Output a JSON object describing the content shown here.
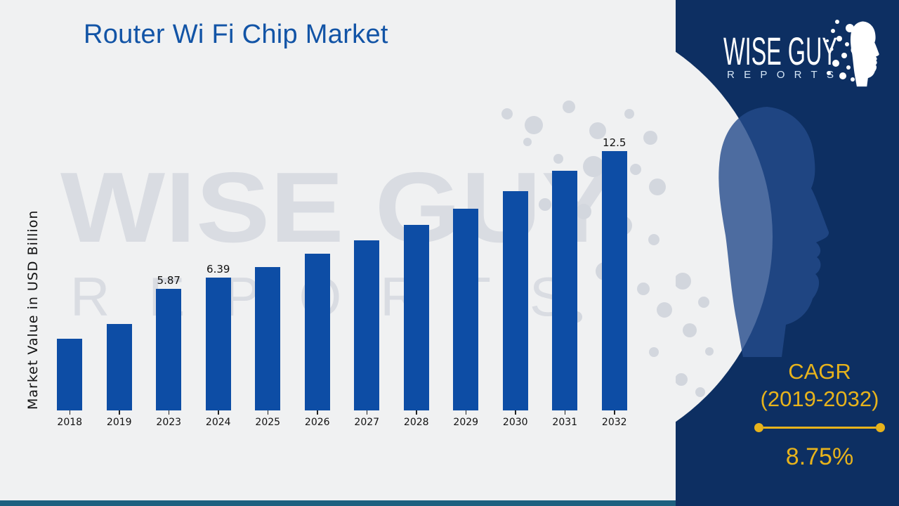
{
  "theme": {
    "background": "#f0f1f2",
    "navy": "#0d2f62",
    "gold": "#e7b31c",
    "teal_strip": "#1d607f",
    "title_blue": "#1254a6",
    "watermark_gray": "#d9dce2",
    "axis_text": "#111111"
  },
  "header": {
    "title": "Router Wi Fi Chip Market"
  },
  "watermark": {
    "line1": "WISE GUY",
    "line2": "REPORTS"
  },
  "brand_panel": {
    "logo_line1": "WISE GUY",
    "logo_line2": "REPORTS",
    "cagr_label": "CAGR",
    "cagr_range": "(2019-2032)",
    "cagr_value": "8.75%"
  },
  "chart_data": {
    "type": "bar",
    "title": "Router Wi Fi Chip Market",
    "xlabel": "",
    "ylabel": "Market Value in USD Billion",
    "categories": [
      "2018",
      "2019",
      "2023",
      "2024",
      "2025",
      "2026",
      "2027",
      "2028",
      "2029",
      "2030",
      "2031",
      "2032"
    ],
    "values": [
      3.45,
      4.18,
      5.87,
      6.39,
      6.91,
      7.55,
      8.19,
      8.93,
      9.72,
      10.56,
      11.54,
      12.5
    ],
    "bar_labels": [
      "",
      "",
      "5.87",
      "6.39",
      "",
      "",
      "",
      "",
      "",
      "",
      "",
      "12.5"
    ],
    "bar_color": "#0d4da5",
    "ylim": [
      0,
      14.7
    ],
    "grid": false,
    "legend": null
  }
}
